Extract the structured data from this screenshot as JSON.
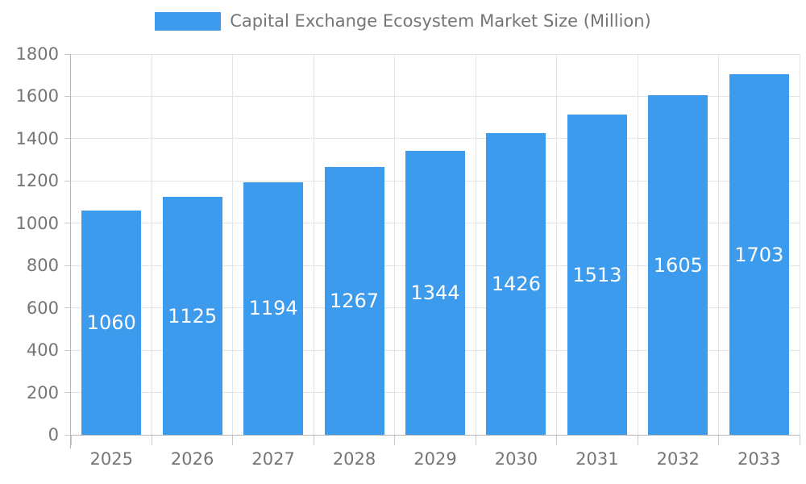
{
  "chart_data": {
    "type": "bar",
    "title": "Capital Exchange Ecosystem Market Size (Million)",
    "categories": [
      "2025",
      "2026",
      "2027",
      "2028",
      "2029",
      "2030",
      "2031",
      "2032",
      "2033"
    ],
    "values": [
      1060,
      1125,
      1194,
      1267,
      1344,
      1426,
      1513,
      1605,
      1703
    ],
    "xlabel": "",
    "ylabel": "",
    "ylim": [
      0,
      1800
    ],
    "yticks": [
      0,
      200,
      400,
      600,
      800,
      1000,
      1200,
      1400,
      1600,
      1800
    ],
    "grid": true,
    "legend_position": "top",
    "bar_labels_inside": true,
    "colors": {
      "bar": "#3c9bed",
      "bar_label_text": "#ffffff",
      "axis_text": "#757575",
      "gridline": "#e4e4e4",
      "axis_line": "#b6b6b6",
      "tick": "#c8c8c8",
      "background": "#ffffff"
    }
  }
}
